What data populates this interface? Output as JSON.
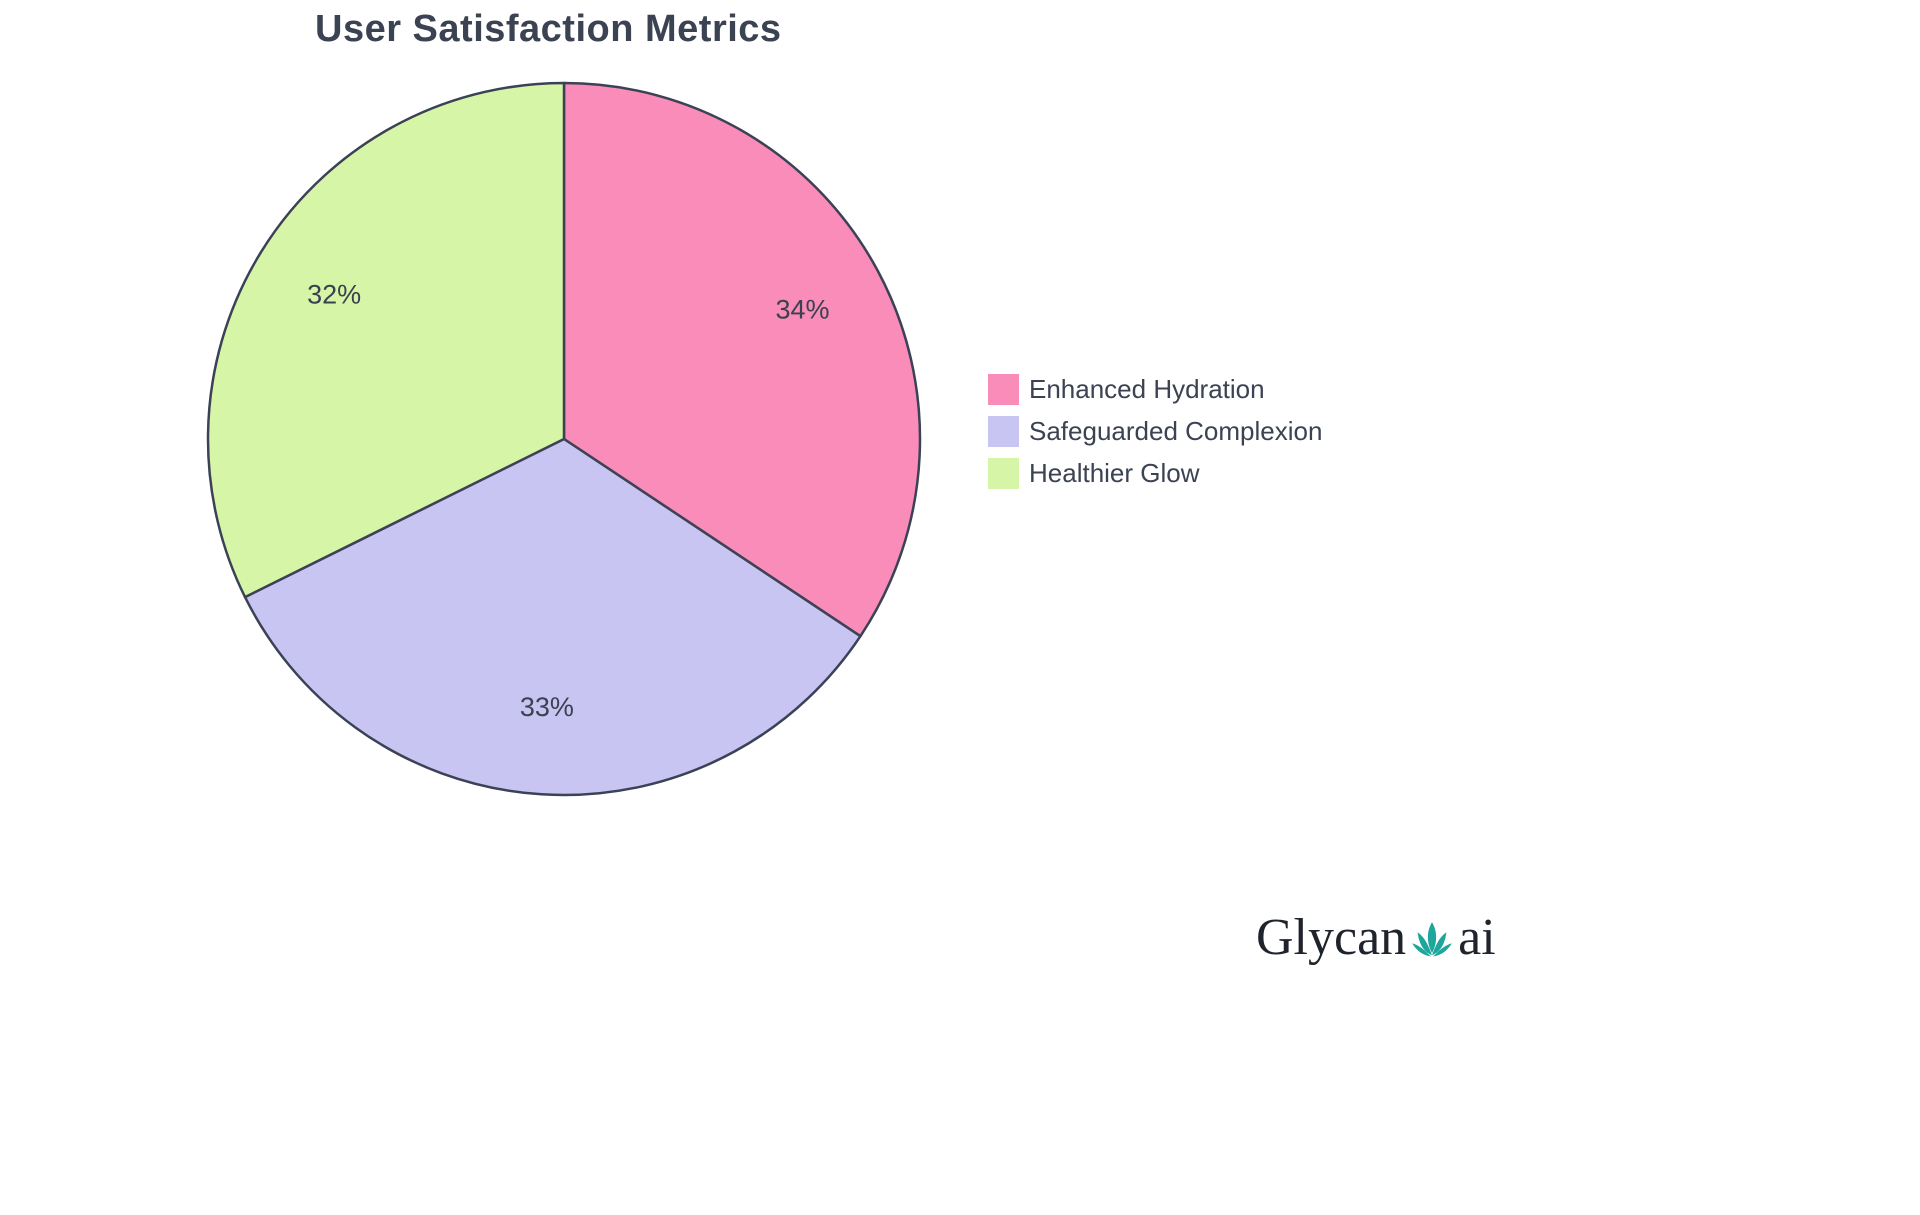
{
  "chart_data": {
    "type": "pie",
    "title": "User Satisfaction Metrics",
    "labels": [
      "Enhanced Hydration",
      "Safeguarded Complexion",
      "Healthier Glow"
    ],
    "values": [
      34,
      33,
      32
    ],
    "value_labels": [
      "34%",
      "33%",
      "32%"
    ],
    "colors": [
      "#F98CB8",
      "#C8C5F2",
      "#D6F5A6"
    ],
    "stroke_color": "#3B4256",
    "start_angle_deg": 0,
    "direction": "clockwise",
    "legend_position": "right",
    "label_radius_fraction": 0.76
  },
  "branding": {
    "logo_text_left": "Glycan",
    "logo_text_right": "ai",
    "logo_icon": "lotus-icon",
    "logo_icon_color": "#1CA69C"
  }
}
